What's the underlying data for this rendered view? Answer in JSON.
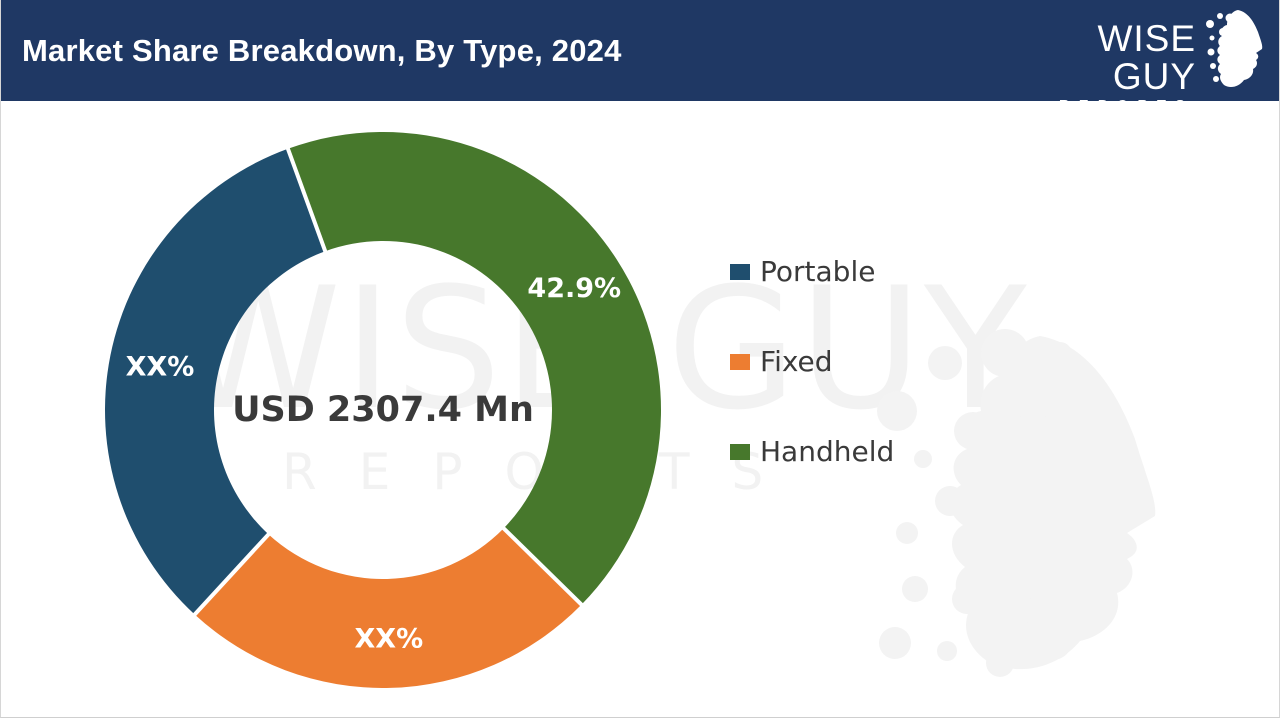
{
  "header": {
    "title": "Market Share Breakdown, By Type, 2024",
    "bg_color": "#1f3864"
  },
  "logo": {
    "line1": "WISE GUY",
    "line2": "REPORTS"
  },
  "watermark": {
    "line1": "WISE GUY",
    "line2": "REPORTS"
  },
  "chart_data": {
    "type": "pie",
    "subtype": "donut",
    "title": "Market Share Breakdown, By Type, 2024",
    "center_label": "USD 2307.4 Mn",
    "start_angle_deg": -20,
    "outer_radius": 278,
    "inner_radius": 169,
    "segments": [
      {
        "name": "Handheld",
        "display_label": "42.9%",
        "value": 42.9,
        "color": "#47782c"
      },
      {
        "name": "Fixed",
        "display_label": "XX%",
        "value": 24.5,
        "color": "#ed7d31"
      },
      {
        "name": "Portable",
        "display_label": "XX%",
        "value": 32.6,
        "color": "#1f4e6e"
      }
    ],
    "legend": [
      {
        "label": "Portable",
        "color": "#1f4e6e"
      },
      {
        "label": "Fixed",
        "color": "#ed7d31"
      },
      {
        "label": "Handheld",
        "color": "#47782c"
      }
    ],
    "legend_position": "right"
  }
}
